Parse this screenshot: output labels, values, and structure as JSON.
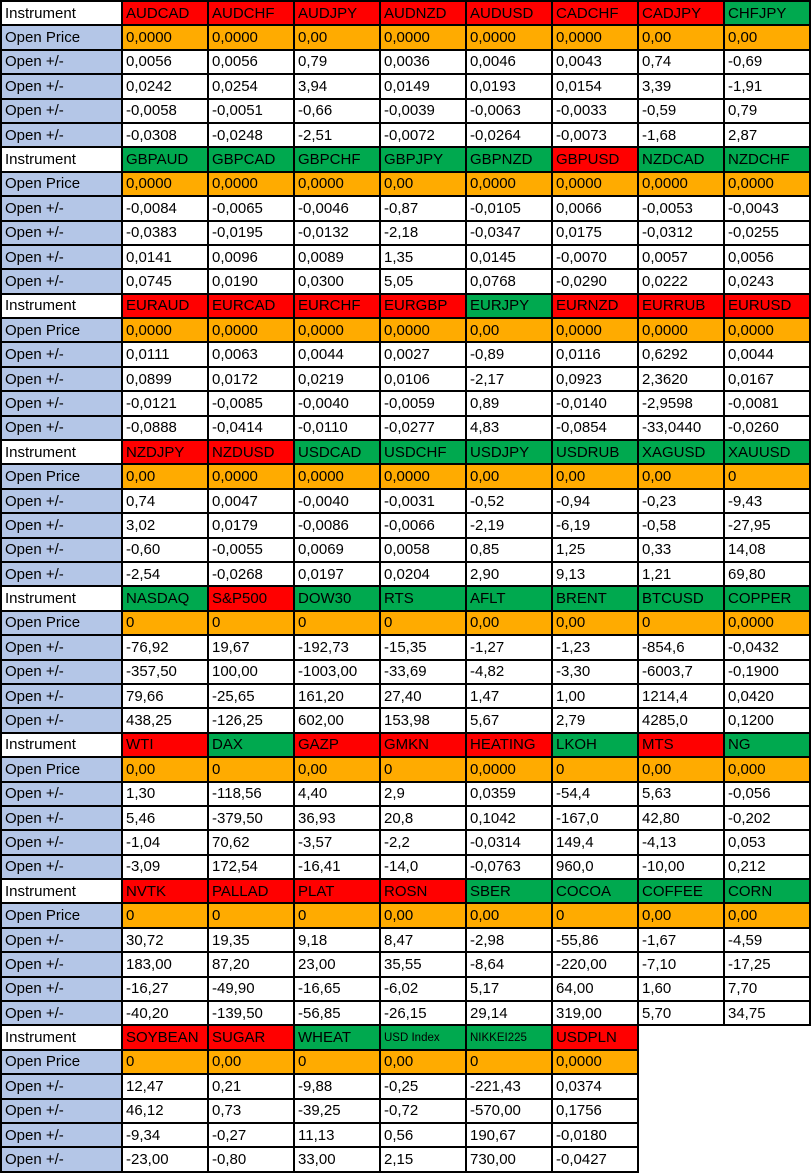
{
  "row_labels": {
    "instrument": "Instrument",
    "open_price": "Open Price",
    "open_change": "Open +/-"
  },
  "colors": {
    "header_red": "#FF0000",
    "header_green": "#00A94F",
    "price_orange": "#FFAB00",
    "label_blue": "#B4C6E7",
    "grid": "#000000"
  },
  "layout": {
    "label_col_width": 121,
    "data_col_width": 86,
    "columns_per_block": 8
  },
  "blocks": [
    {
      "columns": [
        {
          "name": "AUDCAD",
          "color": "red",
          "open_price": "0,0000",
          "changes": [
            "0,0056",
            "0,0242",
            "-0,0058",
            "-0,0308"
          ]
        },
        {
          "name": "AUDCHF",
          "color": "red",
          "open_price": "0,0000",
          "changes": [
            "0,0056",
            "0,0254",
            "-0,0051",
            "-0,0248"
          ]
        },
        {
          "name": "AUDJPY",
          "color": "red",
          "open_price": "0,00",
          "changes": [
            "0,79",
            "3,94",
            "-0,66",
            "-2,51"
          ]
        },
        {
          "name": "AUDNZD",
          "color": "red",
          "open_price": "0,0000",
          "changes": [
            "0,0036",
            "0,0149",
            "-0,0039",
            "-0,0072"
          ]
        },
        {
          "name": "AUDUSD",
          "color": "red",
          "open_price": "0,0000",
          "changes": [
            "0,0046",
            "0,0193",
            "-0,0063",
            "-0,0264"
          ]
        },
        {
          "name": "CADCHF",
          "color": "red",
          "open_price": "0,0000",
          "changes": [
            "0,0043",
            "0,0154",
            "-0,0033",
            "-0,0073"
          ]
        },
        {
          "name": "CADJPY",
          "color": "red",
          "open_price": "0,00",
          "changes": [
            "0,74",
            "3,39",
            "-0,59",
            "-1,68"
          ]
        },
        {
          "name": "CHFJPY",
          "color": "green",
          "open_price": "0,00",
          "changes": [
            "-0,69",
            "-1,91",
            "0,79",
            "2,87"
          ]
        }
      ]
    },
    {
      "columns": [
        {
          "name": "GBPAUD",
          "color": "green",
          "open_price": "0,0000",
          "changes": [
            "-0,0084",
            "-0,0383",
            "0,0141",
            "0,0745"
          ]
        },
        {
          "name": "GBPCAD",
          "color": "green",
          "open_price": "0,0000",
          "changes": [
            "-0,0065",
            "-0,0195",
            "0,0096",
            "0,0190"
          ]
        },
        {
          "name": "GBPCHF",
          "color": "green",
          "open_price": "0,0000",
          "changes": [
            "-0,0046",
            "-0,0132",
            "0,0089",
            "0,0300"
          ]
        },
        {
          "name": "GBPJPY",
          "color": "green",
          "open_price": "0,00",
          "changes": [
            "-0,87",
            "-2,18",
            "1,35",
            "5,05"
          ]
        },
        {
          "name": "GBPNZD",
          "color": "green",
          "open_price": "0,0000",
          "changes": [
            "-0,0105",
            "-0,0347",
            "0,0145",
            "0,0768"
          ]
        },
        {
          "name": "GBPUSD",
          "color": "red",
          "open_price": "0,0000",
          "changes": [
            "0,0066",
            "0,0175",
            "-0,0070",
            "-0,0290"
          ]
        },
        {
          "name": "NZDCAD",
          "color": "green",
          "open_price": "0,0000",
          "changes": [
            "-0,0053",
            "-0,0312",
            "0,0057",
            "0,0222"
          ]
        },
        {
          "name": "NZDCHF",
          "color": "green",
          "open_price": "0,0000",
          "changes": [
            "-0,0043",
            "-0,0255",
            "0,0056",
            "0,0243"
          ]
        }
      ]
    },
    {
      "columns": [
        {
          "name": "EURAUD",
          "color": "red",
          "open_price": "0,0000",
          "changes": [
            "0,0111",
            "0,0899",
            "-0,0121",
            "-0,0888"
          ]
        },
        {
          "name": "EURCAD",
          "color": "red",
          "open_price": "0,0000",
          "changes": [
            "0,0063",
            "0,0172",
            "-0,0085",
            "-0,0414"
          ]
        },
        {
          "name": "EURCHF",
          "color": "red",
          "open_price": "0,0000",
          "changes": [
            "0,0044",
            "0,0219",
            "-0,0040",
            "-0,0110"
          ]
        },
        {
          "name": "EURGBP",
          "color": "red",
          "open_price": "0,0000",
          "changes": [
            "0,0027",
            "0,0106",
            "-0,0059",
            "-0,0277"
          ]
        },
        {
          "name": "EURJPY",
          "color": "green",
          "open_price": "0,00",
          "changes": [
            "-0,89",
            "-2,17",
            "0,89",
            "4,83"
          ]
        },
        {
          "name": "EURNZD",
          "color": "red",
          "open_price": "0,0000",
          "changes": [
            "0,0116",
            "0,0923",
            "-0,0140",
            "-0,0854"
          ]
        },
        {
          "name": "EURRUB",
          "color": "red",
          "open_price": "0,0000",
          "changes": [
            "0,6292",
            "2,3620",
            "-2,9598",
            "-33,0440"
          ]
        },
        {
          "name": "EURUSD",
          "color": "red",
          "open_price": "0,0000",
          "changes": [
            "0,0044",
            "0,0167",
            "-0,0081",
            "-0,0260"
          ]
        }
      ]
    },
    {
      "columns": [
        {
          "name": "NZDJPY",
          "color": "red",
          "open_price": "0,00",
          "changes": [
            "0,74",
            "3,02",
            "-0,60",
            "-2,54"
          ]
        },
        {
          "name": "NZDUSD",
          "color": "red",
          "open_price": "0,0000",
          "changes": [
            "0,0047",
            "0,0179",
            "-0,0055",
            "-0,0268"
          ]
        },
        {
          "name": "USDCAD",
          "color": "green",
          "open_price": "0,0000",
          "changes": [
            "-0,0040",
            "-0,0086",
            "0,0069",
            "0,0197"
          ]
        },
        {
          "name": "USDCHF",
          "color": "green",
          "open_price": "0,0000",
          "changes": [
            "-0,0031",
            "-0,0066",
            "0,0058",
            "0,0204"
          ]
        },
        {
          "name": "USDJPY",
          "color": "green",
          "open_price": "0,00",
          "changes": [
            "-0,52",
            "-2,19",
            "0,85",
            "2,90"
          ]
        },
        {
          "name": "USDRUB",
          "color": "green",
          "open_price": "0,00",
          "changes": [
            "-0,94",
            "-6,19",
            "1,25",
            "9,13"
          ]
        },
        {
          "name": "XAGUSD",
          "color": "green",
          "open_price": "0,00",
          "changes": [
            "-0,23",
            "-0,58",
            "0,33",
            "1,21"
          ]
        },
        {
          "name": "XAUUSD",
          "color": "green",
          "open_price": "0",
          "changes": [
            "-9,43",
            "-27,95",
            "14,08",
            "69,80"
          ]
        }
      ]
    },
    {
      "columns": [
        {
          "name": "NASDAQ",
          "color": "green",
          "open_price": "0",
          "changes": [
            "-76,92",
            "-357,50",
            "79,66",
            "438,25"
          ]
        },
        {
          "name": "S&P500",
          "color": "red",
          "open_price": "0",
          "changes": [
            "19,67",
            "100,00",
            "-25,65",
            "-126,25"
          ]
        },
        {
          "name": "DOW30",
          "color": "green",
          "open_price": "0",
          "changes": [
            "-192,73",
            "-1003,00",
            "161,20",
            "602,00"
          ]
        },
        {
          "name": "RTS",
          "color": "green",
          "open_price": "0",
          "changes": [
            "-15,35",
            "-33,69",
            "27,40",
            "153,98"
          ]
        },
        {
          "name": "AFLT",
          "color": "green",
          "open_price": "0,00",
          "changes": [
            "-1,27",
            "-4,82",
            "1,47",
            "5,67"
          ]
        },
        {
          "name": "BRENT",
          "color": "green",
          "open_price": "0,00",
          "changes": [
            "-1,23",
            "-3,30",
            "1,00",
            "2,79"
          ]
        },
        {
          "name": "BTCUSD",
          "color": "green",
          "open_price": "0",
          "changes": [
            "-854,6",
            "-6003,7",
            "1214,4",
            "4285,0"
          ]
        },
        {
          "name": "COPPER",
          "color": "green",
          "open_price": "0,0000",
          "changes": [
            "-0,0432",
            "-0,1900",
            "0,0420",
            "0,1200"
          ]
        }
      ]
    },
    {
      "columns": [
        {
          "name": "WTI",
          "color": "red",
          "open_price": "0,00",
          "changes": [
            "1,30",
            "5,46",
            "-1,04",
            "-3,09"
          ]
        },
        {
          "name": "DAX",
          "color": "green",
          "open_price": "0",
          "changes": [
            "-118,56",
            "-379,50",
            "70,62",
            "172,54"
          ]
        },
        {
          "name": "GAZP",
          "color": "red",
          "open_price": "0,00",
          "changes": [
            "4,40",
            "36,93",
            "-3,57",
            "-16,41"
          ]
        },
        {
          "name": "GMKN",
          "color": "red",
          "open_price": "0",
          "changes": [
            "2,9",
            "20,8",
            "-2,2",
            "-14,0"
          ]
        },
        {
          "name": "HEATING",
          "color": "red",
          "open_price": "0,0000",
          "changes": [
            "0,0359",
            "0,1042",
            "-0,0314",
            "-0,0763"
          ]
        },
        {
          "name": "LKOH",
          "color": "green",
          "open_price": "0",
          "changes": [
            "-54,4",
            "-167,0",
            "149,4",
            "960,0"
          ]
        },
        {
          "name": "MTS",
          "color": "red",
          "open_price": "0,00",
          "changes": [
            "5,63",
            "42,80",
            "-4,13",
            "-10,00"
          ]
        },
        {
          "name": "NG",
          "color": "green",
          "open_price": "0,000",
          "changes": [
            "-0,056",
            "-0,202",
            "0,053",
            "0,212"
          ]
        }
      ]
    },
    {
      "columns": [
        {
          "name": "NVTK",
          "color": "red",
          "open_price": "0",
          "changes": [
            "30,72",
            "183,00",
            "-16,27",
            "-40,20"
          ]
        },
        {
          "name": "PALLAD",
          "color": "red",
          "open_price": "0",
          "changes": [
            "19,35",
            "87,20",
            "-49,90",
            "-139,50"
          ]
        },
        {
          "name": "PLAT",
          "color": "red",
          "open_price": "0",
          "changes": [
            "9,18",
            "23,00",
            "-16,65",
            "-56,85"
          ]
        },
        {
          "name": "ROSN",
          "color": "red",
          "open_price": "0,00",
          "changes": [
            "8,47",
            "35,55",
            "-6,02",
            "-26,15"
          ]
        },
        {
          "name": "SBER",
          "color": "green",
          "open_price": "0,00",
          "changes": [
            "-2,98",
            "-8,64",
            "5,17",
            "29,14"
          ]
        },
        {
          "name": "COCOA",
          "color": "green",
          "open_price": "0",
          "changes": [
            "-55,86",
            "-220,00",
            "64,00",
            "319,00"
          ]
        },
        {
          "name": "COFFEE",
          "color": "green",
          "open_price": "0,00",
          "changes": [
            "-1,67",
            "-7,10",
            "1,60",
            "5,70"
          ]
        },
        {
          "name": "CORN",
          "color": "green",
          "open_price": "0,00",
          "changes": [
            "-4,59",
            "-17,25",
            "7,70",
            "34,75"
          ]
        }
      ]
    },
    {
      "columns": [
        {
          "name": "SOYBEAN",
          "color": "red",
          "open_price": "0",
          "changes": [
            "12,47",
            "46,12",
            "-9,34",
            "-23,00"
          ]
        },
        {
          "name": "SUGAR",
          "color": "red",
          "open_price": "0,00",
          "changes": [
            "0,21",
            "0,73",
            "-0,27",
            "-0,80"
          ]
        },
        {
          "name": "WHEAT",
          "color": "green",
          "open_price": "0",
          "changes": [
            "-9,88",
            "-39,25",
            "11,13",
            "33,00"
          ]
        },
        {
          "name": "USD Index",
          "color": "green",
          "small": true,
          "open_price": "0,00",
          "changes": [
            "-0,25",
            "-0,72",
            "0,56",
            "2,15"
          ]
        },
        {
          "name": "NIKKEI225",
          "color": "green",
          "small": true,
          "open_price": "0",
          "changes": [
            "-221,43",
            "-570,00",
            "190,67",
            "730,00"
          ]
        },
        {
          "name": "USDPLN",
          "color": "red",
          "open_price": "0,0000",
          "changes": [
            "0,0374",
            "0,1756",
            "-0,0180",
            "-0,0427"
          ]
        },
        null,
        null
      ]
    }
  ]
}
